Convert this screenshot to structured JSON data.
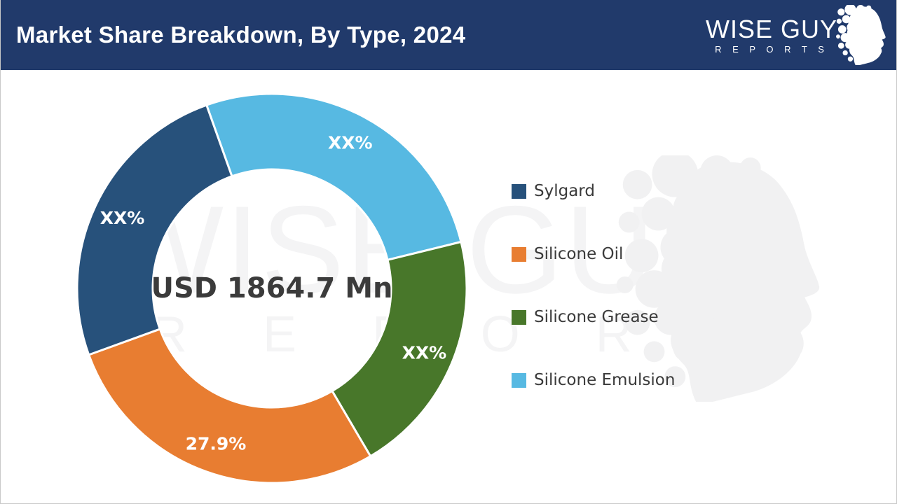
{
  "header": {
    "title": "Market Share Breakdown, By Type, 2024",
    "bg_color": "#213a6b",
    "logo": {
      "line1": "WISE GUY",
      "line2": "R E P O R T S",
      "head_icon": "dotted-face-profile",
      "color": "#ffffff"
    }
  },
  "watermark": {
    "line1": "WISE GUY",
    "line2": "R E P O R T S",
    "head_icon": "dotted-face-profile",
    "color": "#f2f2f3"
  },
  "chart_data": {
    "type": "pie",
    "subtype": "donut",
    "title": "Market Share Breakdown, By Type, 2024",
    "center_label": "USD 1864.7 Mn",
    "start_angle_deg": -19.6,
    "direction": "clockwise",
    "donut_hole_ratio": 0.61,
    "legend_position": "right",
    "segments": [
      {
        "name": "Silicone Emulsion",
        "value_pct": 26.6,
        "label": "XX%",
        "color": "#57b9e2"
      },
      {
        "name": "Silicone Grease",
        "value_pct": 20.4,
        "label": "XX%",
        "color": "#48772a"
      },
      {
        "name": "Silicone Oil",
        "value_pct": 27.9,
        "label": "27.9%",
        "color": "#e87d31"
      },
      {
        "name": "Sylgard",
        "value_pct": 25.1,
        "label": "XX%",
        "color": "#27517b"
      }
    ],
    "legend": [
      {
        "label": "Sylgard",
        "color": "#27517b"
      },
      {
        "label": "Silicone Oil",
        "color": "#e87d31"
      },
      {
        "label": "Silicone Grease",
        "color": "#48772a"
      },
      {
        "label": "Silicone Emulsion",
        "color": "#57b9e2"
      }
    ]
  }
}
